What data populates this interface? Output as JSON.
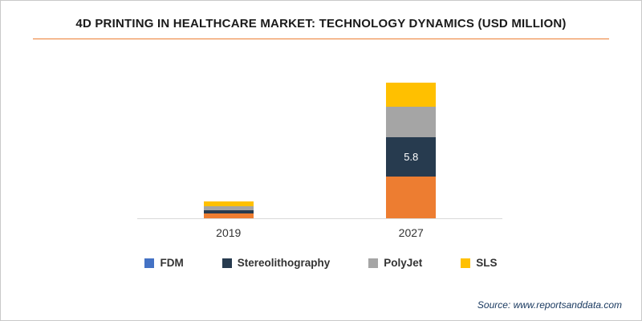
{
  "source": "Source: www.reportsanddata.com",
  "colors": {
    "title_underline": "#ED7D31",
    "axis_line": "#D9D9D9",
    "data_label_text": "#FFFFFF"
  },
  "chart_data": {
    "type": "bar",
    "stacked": true,
    "title": "4D PRINTING IN HEALTHCARE MARKET: TECHNOLOGY DYNAMICS (USD MILLION)",
    "xlabel": "",
    "ylabel": "",
    "grid": false,
    "legend_position": "bottom",
    "categories": [
      "2019",
      "2027"
    ],
    "series": [
      {
        "name": "FDM",
        "values": [
          0.7,
          6.0
        ],
        "bar_color": "#ED7D31",
        "legend_color": "#4472C4"
      },
      {
        "name": "Stereolithography",
        "values": [
          0.5,
          5.8
        ],
        "bar_color": "#273B4F",
        "legend_color": "#273B4F"
      },
      {
        "name": "PolyJet",
        "values": [
          0.5,
          4.4
        ],
        "bar_color": "#A5A5A5",
        "legend_color": "#A5A5A5"
      },
      {
        "name": "SLS",
        "values": [
          0.7,
          3.5
        ],
        "bar_color": "#FFC000",
        "legend_color": "#FFC000"
      }
    ],
    "data_labels": [
      {
        "category": "2027",
        "series": "Stereolithography",
        "text": "5.8"
      }
    ]
  }
}
